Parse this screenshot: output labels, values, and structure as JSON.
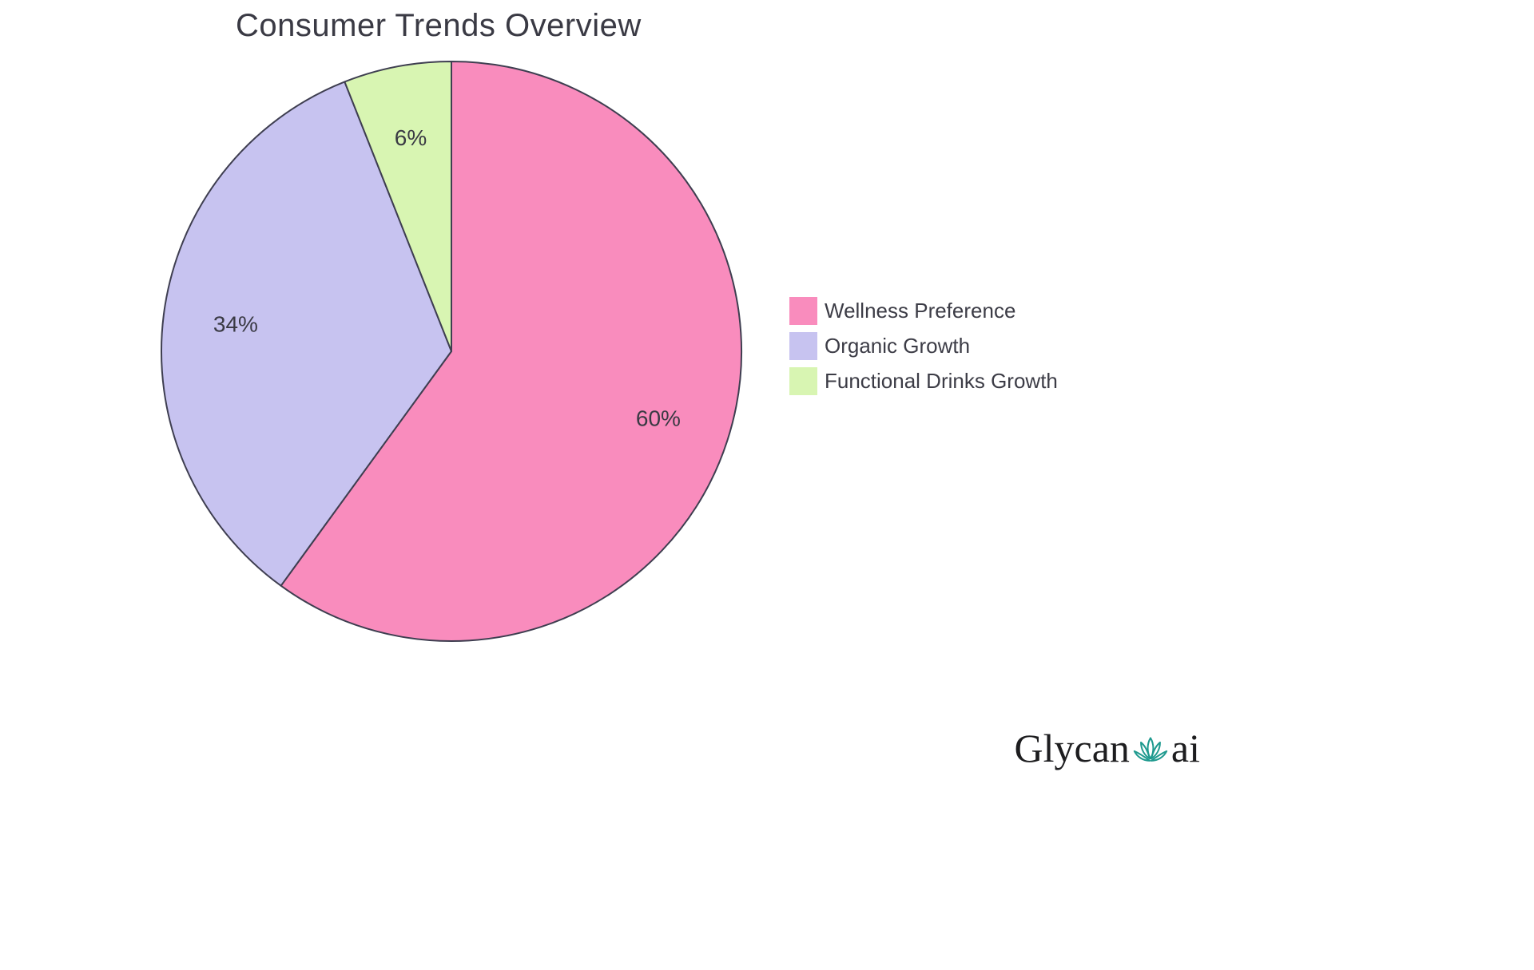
{
  "chart_data": {
    "type": "pie",
    "title": "Consumer Trends Overview",
    "labels": [
      "Wellness Preference",
      "Organic Growth",
      "Functional Drinks Growth"
    ],
    "values": [
      60,
      34,
      6
    ],
    "value_labels": [
      "60%",
      "34%",
      "6%"
    ],
    "colors": [
      "#F98CBD",
      "#C7C3F0",
      "#D8F5B2"
    ],
    "stroke_color": "#3E3E50",
    "label_color": "#3A3A44",
    "start_angle_deg": 0,
    "direction": "clockwise",
    "legend_position": "right"
  },
  "branding": {
    "logo_text_left": "Glycan",
    "logo_text_right": "ai",
    "logo_icon": "lotus-icon",
    "logo_icon_color": "#1F9A8F"
  }
}
